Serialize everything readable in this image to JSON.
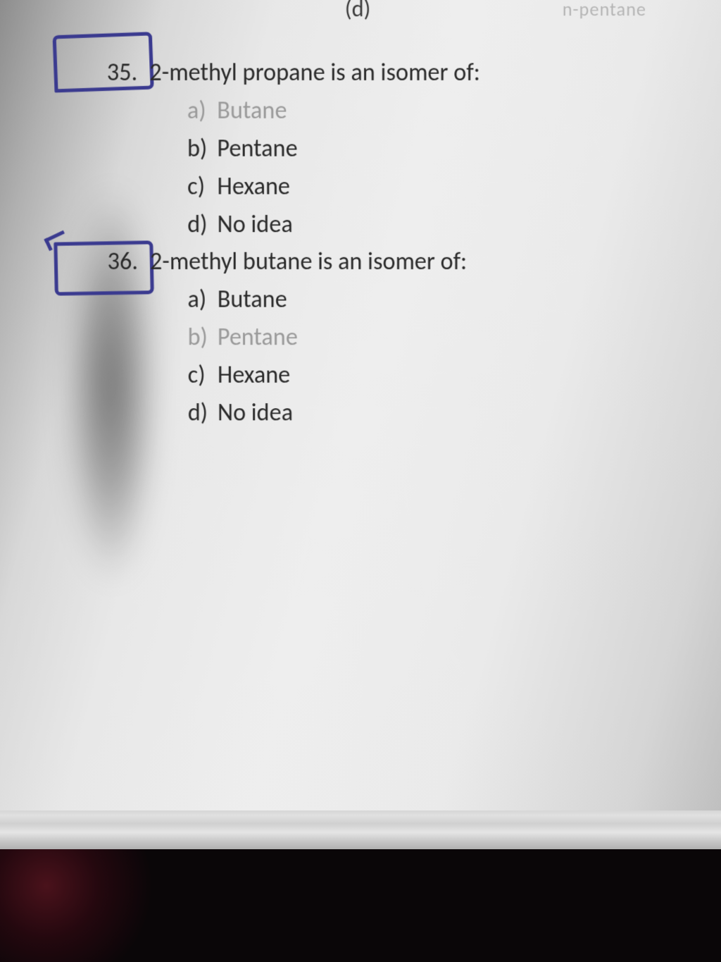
{
  "header": {
    "option_d": "(d)",
    "faded_text": "n-pentane"
  },
  "questions": [
    {
      "number": "35.",
      "text": "2-methyl propane is an isomer of:",
      "options": [
        {
          "letter": "a)",
          "text": "Butane",
          "faded": true
        },
        {
          "letter": "b)",
          "text": "Pentane",
          "faded": false
        },
        {
          "letter": "c)",
          "text": "Hexane",
          "faded": false
        },
        {
          "letter": "d)",
          "text": "No idea",
          "faded": false
        }
      ]
    },
    {
      "number": "36.",
      "text": "2-methyl butane is an isomer of:",
      "options": [
        {
          "letter": "a)",
          "text": "Butane",
          "faded": false
        },
        {
          "letter": "b)",
          "text": "Pentane",
          "faded": true
        },
        {
          "letter": "c)",
          "text": "Hexane",
          "faded": false
        },
        {
          "letter": "d)",
          "text": "No idea",
          "faded": false
        }
      ]
    }
  ],
  "styling": {
    "ink_color": "#3a3a8f",
    "text_color": "#2a2a2a",
    "faded_color": "#9a9a9a",
    "font_size_main": 34,
    "font_size_header": 26
  }
}
